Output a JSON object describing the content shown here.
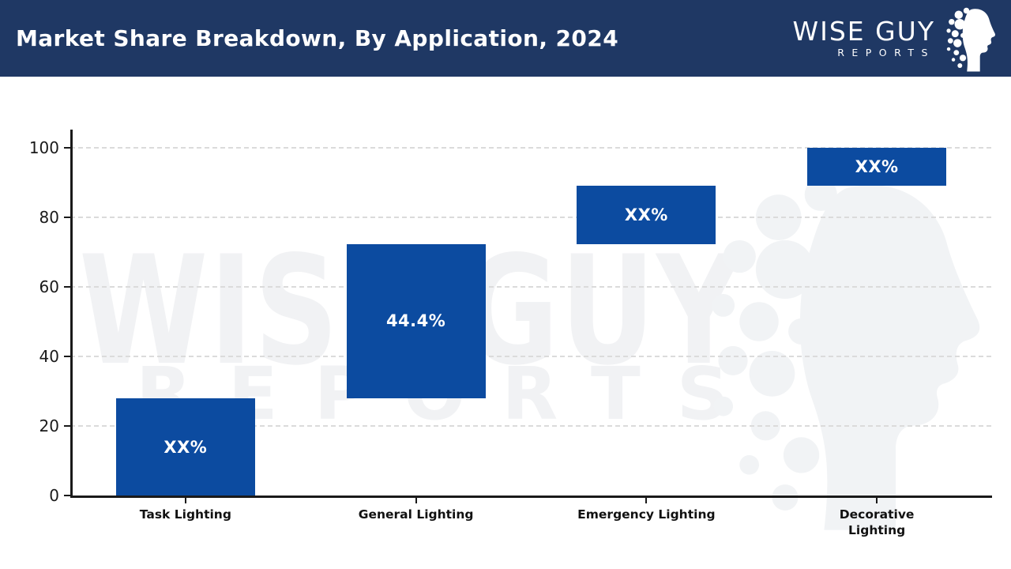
{
  "header": {
    "title": "Market Share Breakdown, By Application, 2024",
    "bg_color": "#1f3864",
    "logo": {
      "line1": "WISE GUY",
      "line2": "REPORTS"
    }
  },
  "watermark": {
    "line1": "WISE GUY",
    "line2": "REPORTS"
  },
  "chart_data": {
    "type": "bar",
    "subtype": "waterfall",
    "title": "Market Share Breakdown, By Application, 2024",
    "xlabel": "",
    "ylabel": "",
    "categories": [
      "Task Lighting",
      "General Lighting",
      "Emergency Lighting",
      "Decorative\nLighting"
    ],
    "segments": [
      {
        "category": "Task Lighting",
        "start": 0,
        "end": 27.9,
        "label": "XX%"
      },
      {
        "category": "General Lighting",
        "start": 27.9,
        "end": 72.3,
        "label": "44.4%"
      },
      {
        "category": "Emergency Lighting",
        "start": 72.3,
        "end": 89.1,
        "label": "XX%"
      },
      {
        "category": "Decorative Lighting",
        "start": 89.1,
        "end": 100,
        "label": "XX%"
      }
    ],
    "y_ticks": [
      0,
      20,
      40,
      60,
      80,
      100
    ],
    "ylim": [
      0,
      105
    ],
    "grid": "horizontal-dashed",
    "legend": "none",
    "bar_color": "#0c4ba0",
    "bar_label_color": "#ffffff",
    "axis_color": "#1a1a1a",
    "gridline_color": "#dbdbdb"
  }
}
